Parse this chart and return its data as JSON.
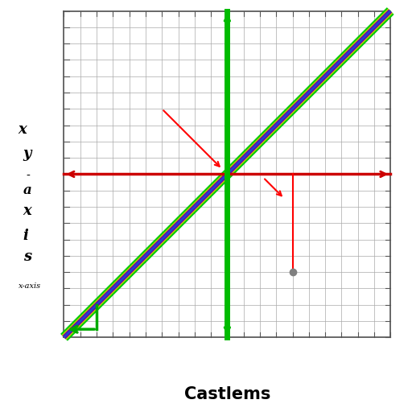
{
  "title": "Castlems",
  "background_color": "#ffffff",
  "grid_color": "#aaaaaa",
  "xlim": [
    -10,
    10
  ],
  "ylim": [
    -10,
    10
  ],
  "grid_step": 1,
  "axis_color": "#cc0000",
  "yaxis_color": "#00bb00",
  "diagonal_colors": [
    "#00cc00",
    "#cccc00",
    "#6600aa",
    "#2244cc"
  ],
  "diagonal_linewidths": [
    9,
    6,
    4,
    2
  ],
  "x_axis_lw": 2.5,
  "y_axis_lw": 5,
  "gray_dot_x": 4,
  "gray_dot_y": -6,
  "axis_origin_x": 0,
  "axis_origin_y": 0,
  "frame_color": "#555555",
  "tick_color": "#555555"
}
